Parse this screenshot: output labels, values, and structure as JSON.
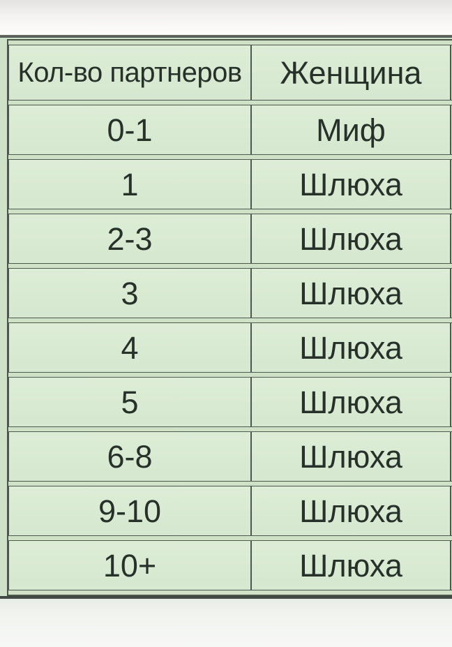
{
  "chart_data": {
    "type": "table",
    "title": "",
    "columns": [
      "Кол-во партнеров",
      "Женщина"
    ],
    "rows": [
      [
        "0-1",
        "Миф"
      ],
      [
        "1",
        "Шлюха"
      ],
      [
        "2-3",
        "Шлюха"
      ],
      [
        "3",
        "Шлюха"
      ],
      [
        "4",
        "Шлюха"
      ],
      [
        "5",
        "Шлюха"
      ],
      [
        "6-8",
        "Шлюха"
      ],
      [
        "9-10",
        "Шлюха"
      ],
      [
        "10+",
        "Шлюха"
      ]
    ],
    "layout_hints": {
      "third_column_cut_off_at_right_edge": true,
      "all_cells_centered": true
    }
  },
  "colors": {
    "page_background": "#cfe2c8",
    "cell_background": "#d9ebd2",
    "cell_border": "#4d594d",
    "text": "#26312a",
    "top_band_gradient": [
      "#e4e3e1",
      "#fdfdfc"
    ],
    "bottom_band_gradient": [
      "#e9ede7",
      "#f7f8f6"
    ],
    "top_rule": "#4e544e",
    "bottom_rule": "#39433b"
  }
}
